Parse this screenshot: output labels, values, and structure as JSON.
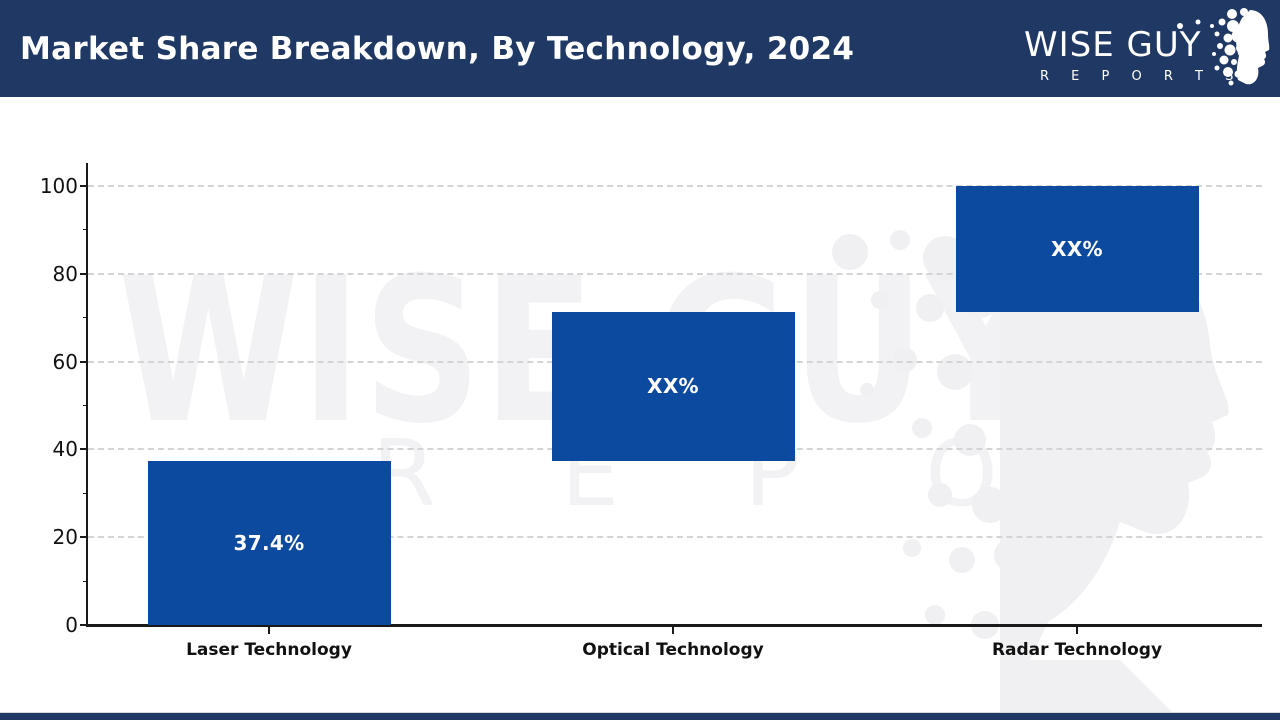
{
  "header": {
    "title": "Market Share Breakdown, By Technology, 2024",
    "logo": {
      "name": "WISE GUY",
      "tagline": "R E P O R T S"
    }
  },
  "watermark": {
    "line1": "WISE GUY",
    "line2": "R E P O R T S"
  },
  "chart_data": {
    "type": "bar",
    "subtype": "floating-waterfall",
    "title": "Market Share Breakdown, By Technology, 2024",
    "categories": [
      "Laser Technology",
      "Optical Technology",
      "Radar Technology"
    ],
    "bars": [
      {
        "category": "Laser Technology",
        "start": 0,
        "end": 37.4,
        "label": "37.4%"
      },
      {
        "category": "Optical Technology",
        "start": 37.4,
        "end": 71.3,
        "label": "XX%"
      },
      {
        "category": "Radar Technology",
        "start": 71.3,
        "end": 100,
        "label": "XX%"
      }
    ],
    "ylim": [
      0,
      100
    ],
    "yticks": [
      0,
      20,
      40,
      60,
      80,
      100
    ],
    "grid": "horizontal-dashed",
    "legend": "none",
    "bar_color": "#0C4AA0",
    "header_color": "#1F3864"
  }
}
